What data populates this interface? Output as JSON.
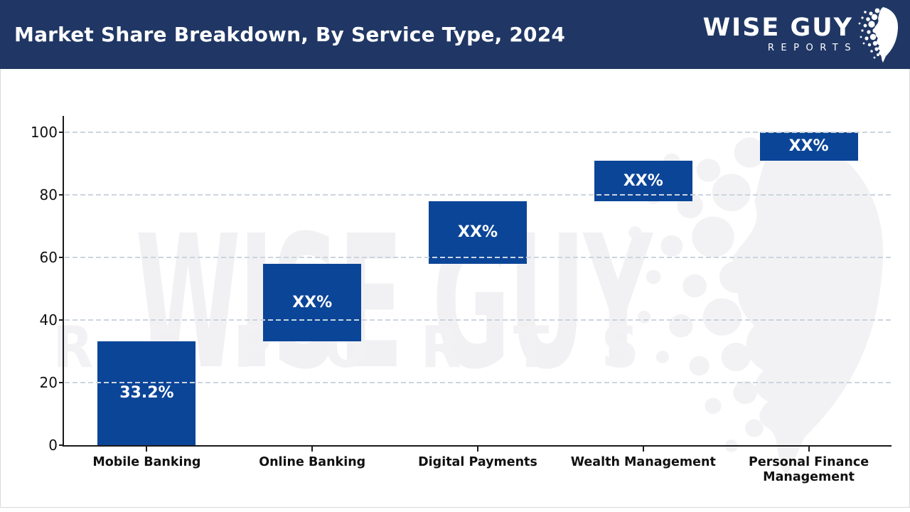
{
  "header": {
    "title": "Market Share Breakdown, By Service Type, 2024",
    "logo": {
      "line1": "WISE GUY",
      "line2": "REPORTS"
    }
  },
  "watermark": {
    "line1": "WISE GUY",
    "line2": "REPORTS"
  },
  "colors": {
    "header_bg": "#203765",
    "bar": "#0b4598",
    "bar_label_text": "#ffffff",
    "grid": "#ccd4de",
    "axis": "#1a1a1a",
    "watermark": "#f1f1f4"
  },
  "chart_data": {
    "type": "bar",
    "subtype": "waterfall",
    "title": "Market Share Breakdown, By Service Type, 2024",
    "categories": [
      "Mobile Banking",
      "Online Banking",
      "Digital Payments",
      "Wealth Management",
      "Personal Finance Management"
    ],
    "segments": [
      [
        0,
        33.2
      ],
      [
        33.2,
        58
      ],
      [
        58,
        78
      ],
      [
        78,
        91
      ],
      [
        91,
        100
      ]
    ],
    "values": [
      33.2,
      24.8,
      20,
      13,
      9
    ],
    "bar_labels": [
      "33.2%",
      "XX%",
      "XX%",
      "XX%",
      "XX%"
    ],
    "xlabel": "",
    "ylabel": "",
    "yticks": [
      0,
      20,
      40,
      60,
      80,
      100
    ],
    "ylim": [
      0,
      105
    ],
    "grid": "dashed-horizontal",
    "legend": "none"
  }
}
